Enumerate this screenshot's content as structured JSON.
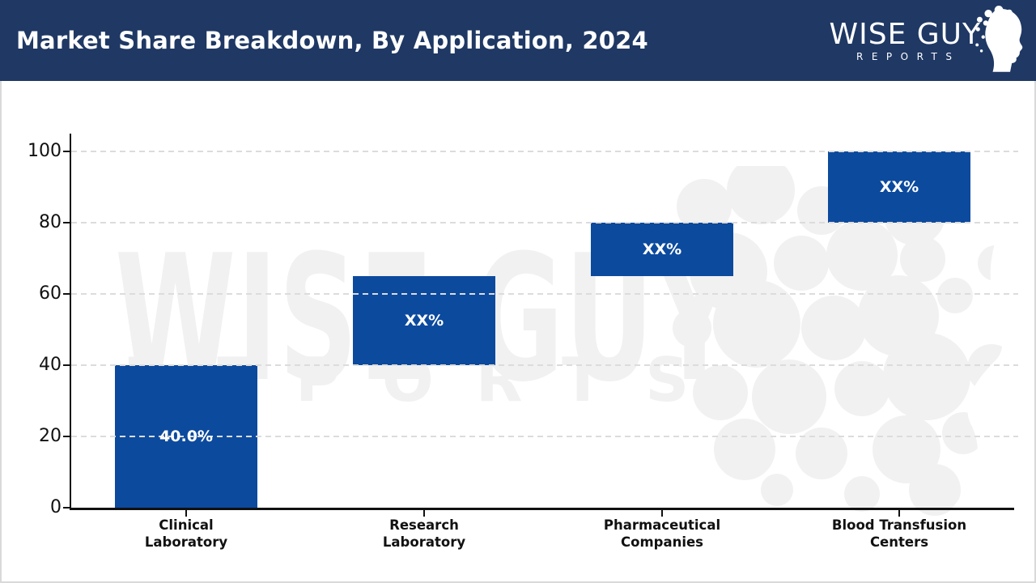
{
  "header": {
    "title": "Market Share Breakdown, By Application, 2024",
    "logo": {
      "wordmark": "WISE GUY",
      "subtitle": "REPORTS"
    }
  },
  "watermark": {
    "wordmark": "WISE GUY",
    "subtitle": "REPORTS"
  },
  "colors": {
    "header_bg": "#1f3864",
    "bar": "#0c4a9e",
    "bar_label": "#ffffff",
    "grid": "#dcdcdc",
    "axis": "#111111",
    "watermark": "#f1f1f1",
    "title_text": "#ffffff"
  },
  "chart_data": {
    "type": "bar",
    "subtype": "floating-segment-waterfall",
    "title": "Market Share Breakdown, By Application, 2024",
    "categories": [
      {
        "name": "Clinical Laboratory",
        "lines": [
          "Clinical",
          "Laboratory"
        ]
      },
      {
        "name": "Research Laboratory",
        "lines": [
          "Research",
          "Laboratory"
        ]
      },
      {
        "name": "Pharmaceutical Companies",
        "lines": [
          "Pharmaceutical",
          "Companies"
        ]
      },
      {
        "name": "Blood Transfusion Centers",
        "lines": [
          "Blood Transfusion",
          "Centers"
        ]
      }
    ],
    "segments": [
      {
        "category": "Clinical Laboratory",
        "from": 0,
        "to": 40,
        "label": "40.0%"
      },
      {
        "category": "Research Laboratory",
        "from": 40,
        "to": 65,
        "label": "XX%"
      },
      {
        "category": "Pharmaceutical Companies",
        "from": 65,
        "to": 80,
        "label": "XX%"
      },
      {
        "category": "Blood Transfusion Centers",
        "from": 80,
        "to": 100,
        "label": "XX%"
      }
    ],
    "yticks": [
      0,
      20,
      40,
      60,
      80,
      100
    ],
    "ylim": [
      0,
      105
    ],
    "xlabel": "",
    "ylabel": "",
    "grid": "horizontal-dashed",
    "legend": "none"
  }
}
